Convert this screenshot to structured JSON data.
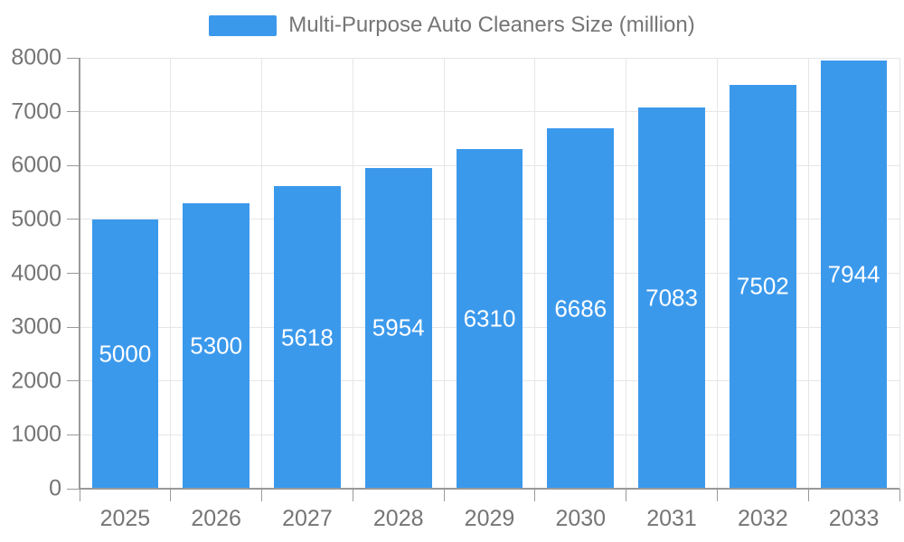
{
  "chart_data": {
    "type": "bar",
    "title": "Multi-Purpose Auto Cleaners Size (million)",
    "legend": {
      "position": "top",
      "entries": [
        "Multi-Purpose Auto Cleaners Size (million)"
      ]
    },
    "categories": [
      "2025",
      "2026",
      "2027",
      "2028",
      "2029",
      "2030",
      "2031",
      "2032",
      "2033"
    ],
    "values": [
      5000,
      5300,
      5618,
      5954,
      6310,
      6686,
      7083,
      7502,
      7944
    ],
    "value_labels": [
      "5000",
      "5300",
      "5618",
      "5954",
      "6310",
      "6686",
      "7083",
      "7502",
      "7944"
    ],
    "xlabel": "",
    "ylabel": "",
    "ylim": [
      0,
      8000
    ],
    "ytick_step": 1000,
    "ytick_labels": [
      "0",
      "1000",
      "2000",
      "3000",
      "4000",
      "5000",
      "6000",
      "7000",
      "8000"
    ],
    "grid": "on",
    "style": {
      "bar_color": "#3b99ec",
      "grid_color": "#e6e6e6",
      "axis_color": "#999999",
      "tick_color": "#999999",
      "text_color": "#757575",
      "value_label_color": "#ffffff",
      "background_color": "#ffffff"
    }
  }
}
